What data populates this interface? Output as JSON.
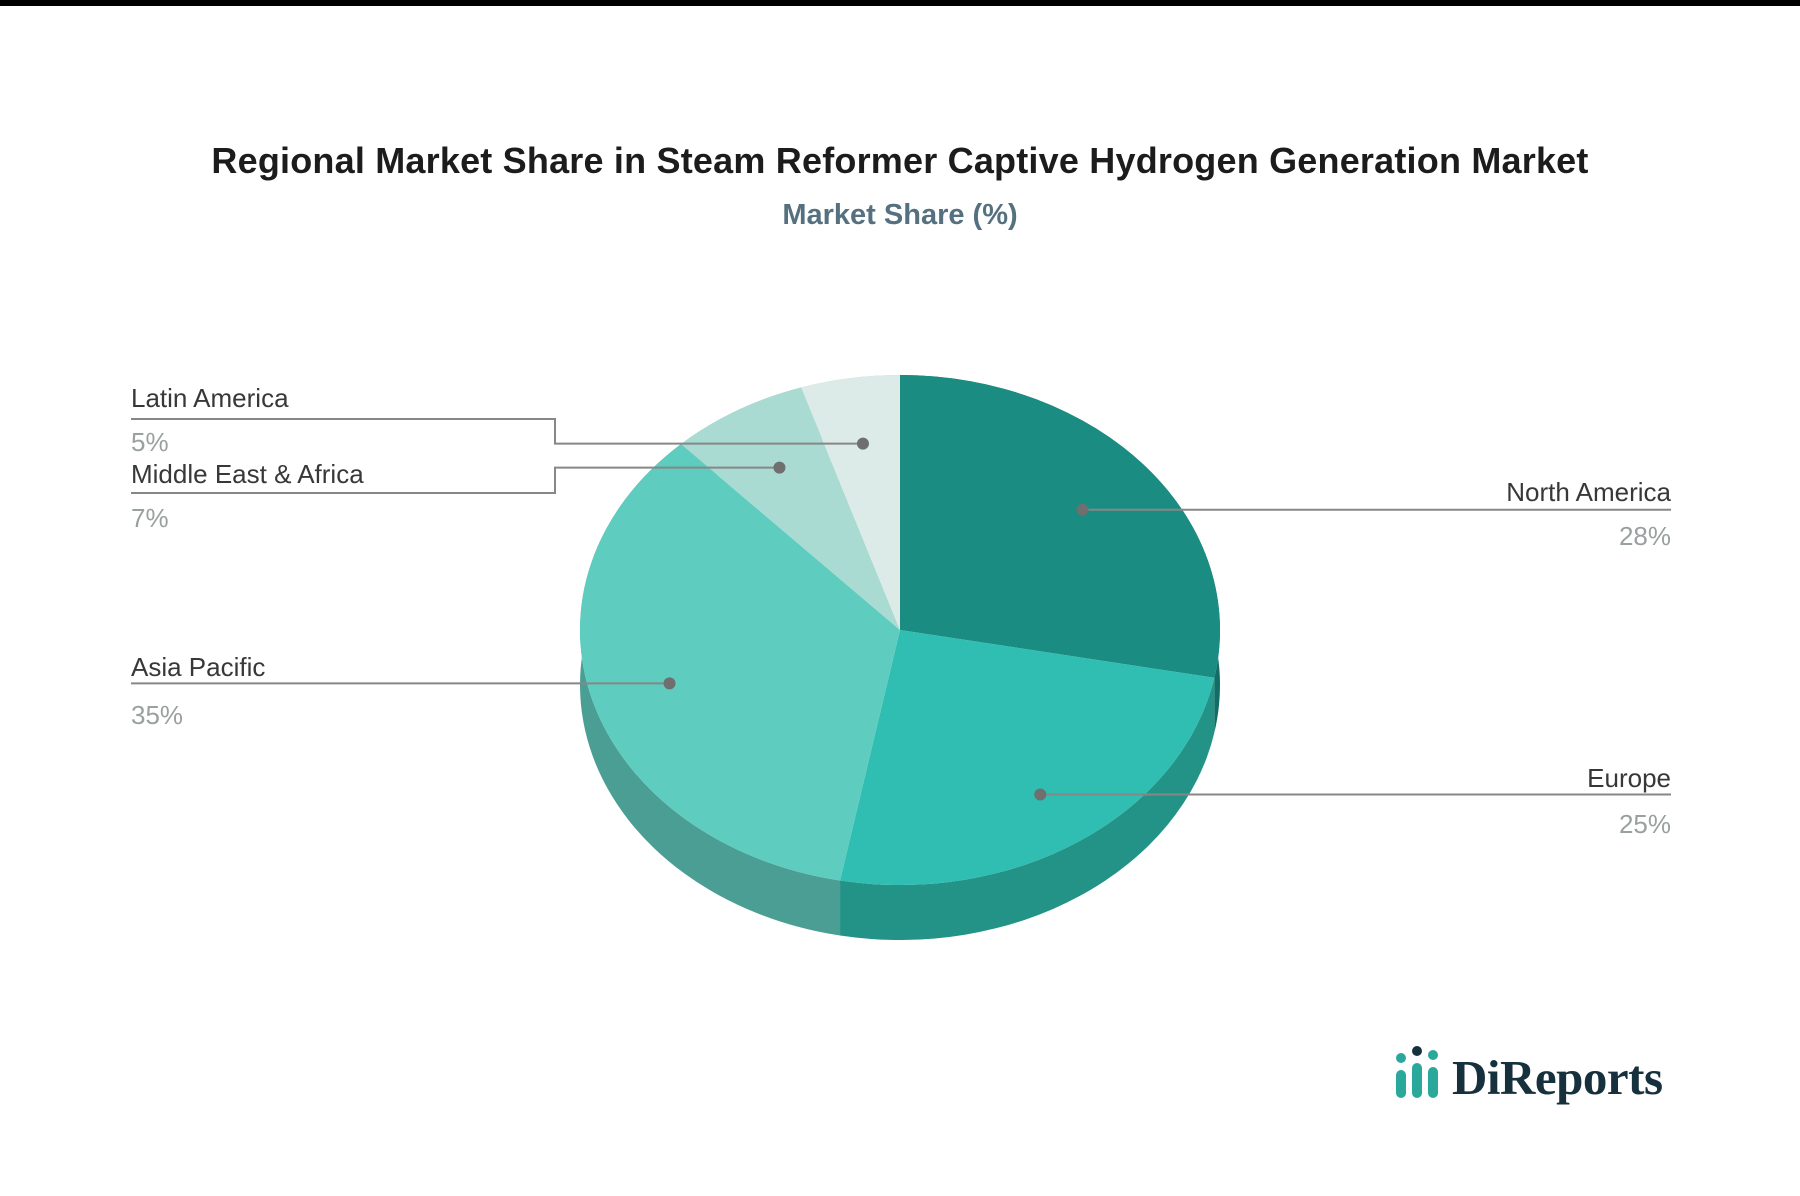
{
  "page": {
    "background_color": "#ffffff",
    "top_bar_color": "#000000"
  },
  "header": {
    "title": "Regional Market Share in Steam Reformer Captive Hydrogen Generation Market",
    "subtitle": "Market Share (%)"
  },
  "chart_data": {
    "type": "pie",
    "style": "3d-pie",
    "title": "Regional Market Share in Steam Reformer Captive Hydrogen Generation Market",
    "subtitle": "Market Share (%)",
    "unit": "%",
    "direction": "clockwise",
    "start_angle_deg": 0,
    "categories": [
      "North America",
      "Europe",
      "Asia Pacific",
      "Middle East & Africa",
      "Latin America"
    ],
    "values": [
      28,
      25,
      35,
      7,
      5
    ],
    "display_labels": [
      "28%",
      "25%",
      "35%",
      "7%",
      "5%"
    ],
    "colors": [
      "#1a8c81",
      "#2fbeb1",
      "#5ecdbf",
      "#a9dbd2",
      "#dcebe7"
    ],
    "side_colors": [
      "#146d64",
      "#249387",
      "#4b9e93",
      "#84aba3",
      "#aebbb7"
    ],
    "leader_line_color": "#878787",
    "leader_dot_color": "#6f6f6f",
    "label_text_color": "#383838",
    "percent_text_color": "#9aa0a0",
    "legend": "none"
  },
  "branding": {
    "logo_text": "DiReports",
    "logo_icon": "bar-chart-icon",
    "logo_text_color": "#16313d",
    "logo_icon_color": "#2aa89c"
  }
}
